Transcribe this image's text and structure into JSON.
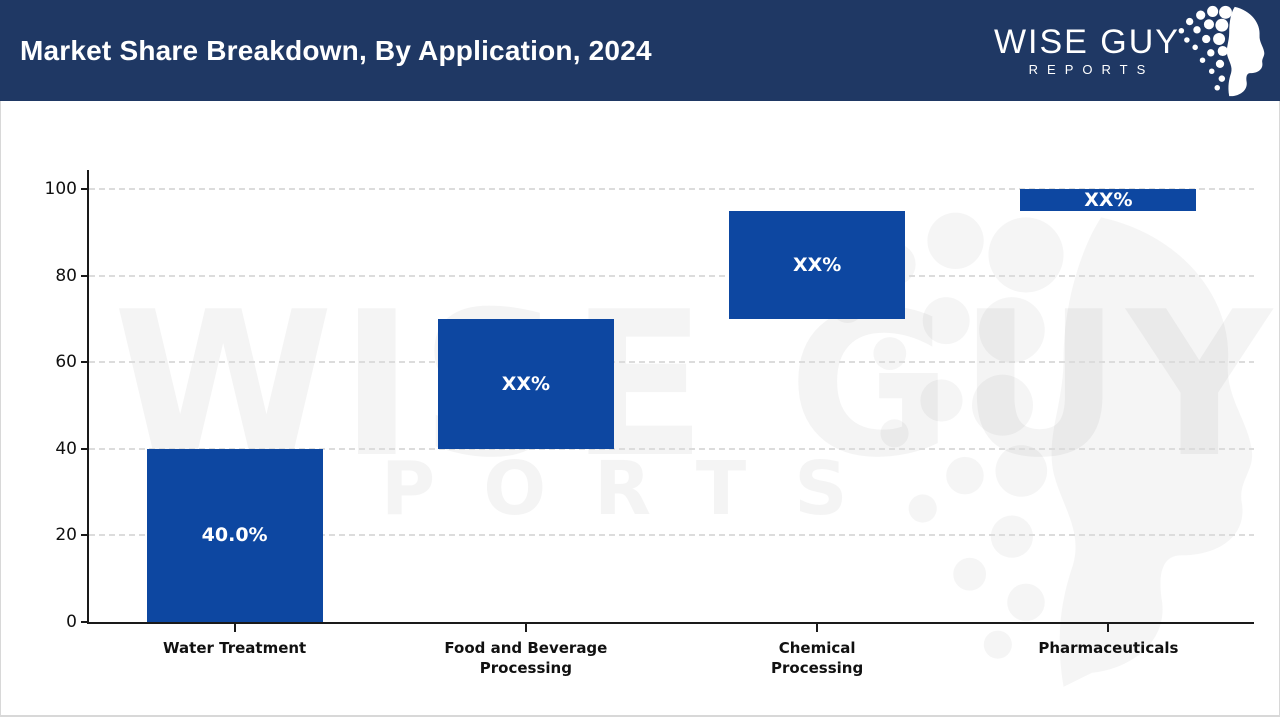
{
  "header": {
    "title": "Market Share Breakdown, By Application, 2024",
    "logo": {
      "wordmark": "WISE GUY",
      "subtext": "REPORTS"
    }
  },
  "watermark": {
    "line1": "WISE GUY",
    "line2": "PORTS"
  },
  "chart_data": {
    "type": "bar",
    "subtype": "waterfall",
    "title": "Market Share Breakdown, By Application, 2024",
    "categories": [
      "Water Treatment",
      "Food and Beverage\nProcessing",
      "Chemical\nProcessing",
      "Pharmaceuticals"
    ],
    "segments": [
      {
        "category": "Water Treatment",
        "start": 0,
        "end": 40,
        "label": "40.0%"
      },
      {
        "category": "Food and Beverage Processing",
        "start": 40,
        "end": 70,
        "label": "XX%"
      },
      {
        "category": "Chemical Processing",
        "start": 70,
        "end": 95,
        "label": "XX%"
      },
      {
        "category": "Pharmaceuticals",
        "start": 95,
        "end": 100,
        "label": "XX%"
      }
    ],
    "xlabel": "",
    "ylabel": "",
    "ylim": [
      0,
      104.5
    ],
    "yticks": [
      0,
      20,
      40,
      60,
      80,
      100
    ],
    "grid": "horizontal dashed",
    "legend": "none",
    "colors": {
      "bar": "#0d47a1",
      "bar_label": "#ffffff",
      "axis": "#1a1a1a",
      "grid": "#dcdcdc",
      "header_bg": "#1f3864"
    }
  }
}
